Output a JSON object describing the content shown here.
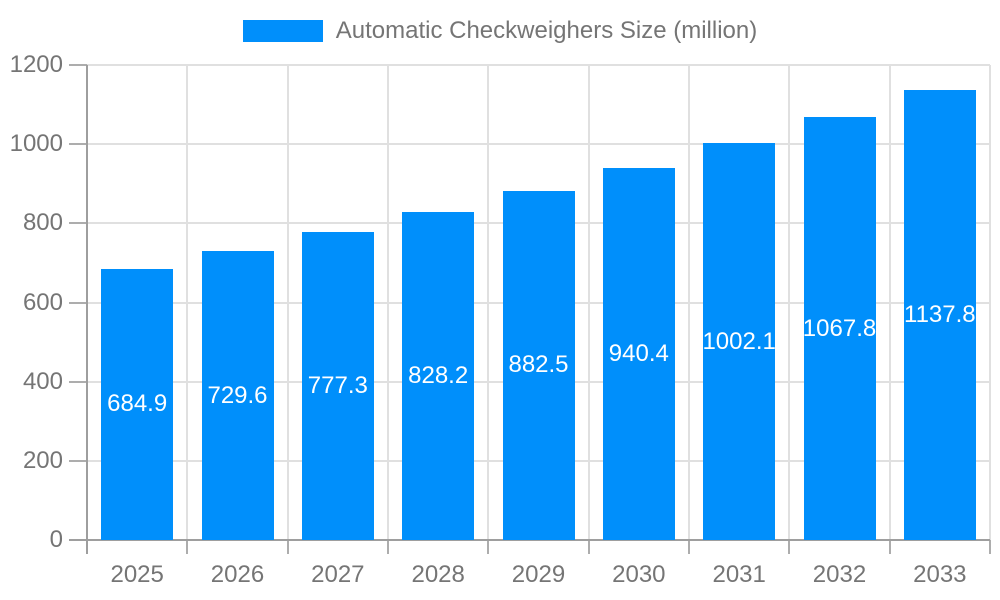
{
  "legend": {
    "swatch_color": "#008FFB"
  },
  "colors": {
    "bar": "#008FFB",
    "grid": "#e0e0e0",
    "axis": "#9e9e9e",
    "tick": "#adadad",
    "text": "#757575",
    "value_label": "#ffffff",
    "background": "#ffffff"
  },
  "chart_data": {
    "type": "bar",
    "title": "Automatic Checkweighers Size (million)",
    "categories": [
      "2025",
      "2026",
      "2027",
      "2028",
      "2029",
      "2030",
      "2031",
      "2032",
      "2033"
    ],
    "values": [
      684.9,
      729.6,
      777.3,
      828.2,
      882.5,
      940.4,
      1002.1,
      1067.8,
      1137.8
    ],
    "xlabel": "",
    "ylabel": "",
    "ylim": [
      0,
      1200
    ],
    "yticks": [
      0,
      200,
      400,
      600,
      800,
      1000,
      1200
    ],
    "grid": true,
    "legend_position": "top",
    "value_labels": "inside-center-white"
  }
}
